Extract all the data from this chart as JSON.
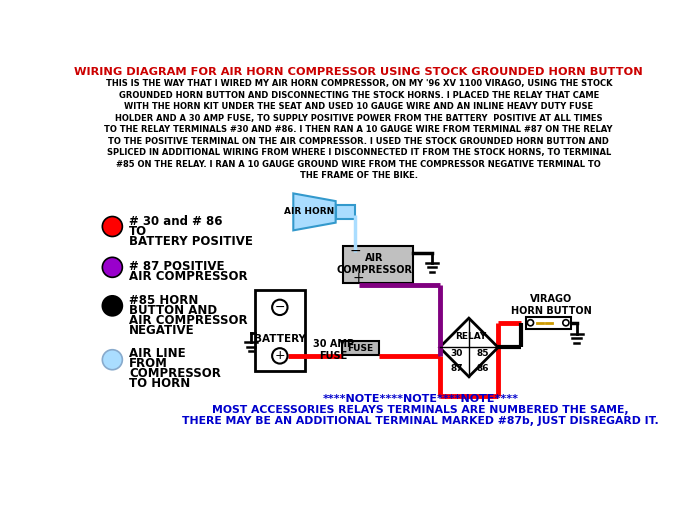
{
  "title": "WIRING DIAGRAM FOR AIR HORN COMPRESSOR USING STOCK GROUNDED HORN BUTTON",
  "title_color": "#cc0000",
  "bg_color": "#ffffff",
  "description": "THIS IS THE WAY THAT I WIRED MY AIR HORN COMPRESSOR, ON MY '96 XV 1100 VIRAGO, USING THE STOCK\nGROUNDED HORN BUTTON AND DISCONNECTING THE STOCK HORNS. I PLACED THE RELAY THAT CAME\nWITH THE HORN KIT UNDER THE SEAT AND USED 10 GAUGE WIRE AND AN INLINE HEAVY DUTY FUSE\nHOLDER AND A 30 AMP FUSE, TO SUPPLY POSITIVE POWER FROM THE BATTERY  POSITIVE AT ALL TIMES\nTO THE RELAY TERMINALS #30 AND #86. I THEN RAN A 10 GAUGE WIRE FROM TERMINAL #87 ON THE RELAY\nTO THE POSITIVE TERMINAL ON THE AIR COMPRESSOR. I USED THE STOCK GROUNDED HORN BUTTON AND\nSPLICED IN ADDITIONAL WIRING FROM WHERE I DISCONNECTED IT FROM THE STOCK HORNS, TO TERMINAL\n#85 ON THE RELAY. I RAN A 10 GAUGE GROUND WIRE FROM THE COMPRESSOR NEGATIVE TERMINAL TO\nTHE FRAME OF THE BIKE.",
  "note_line1": "****NOTE****NOTE****NOTE****",
  "note_line2": "MOST ACCESSORIES RELAYS TERMINALS ARE NUMBERED THE SAME,",
  "note_line3": "THERE MAY BE AN ADDITIONAL TERMINAL MARKED #87b, JUST DISREGARD IT.",
  "note_color": "#0000cc",
  "legend": [
    {
      "color": "#ff0000",
      "text": "# 30 and # 86\nTO\nBATTERY POSITIVE"
    },
    {
      "color": "#9900cc",
      "text": "# 87 POSITIVE\nAIR COMPRESSOR"
    },
    {
      "color": "#000000",
      "text": "#85 HORN\nBUTTON AND\nAIR COMPRESSOR\nNEGATIVE"
    },
    {
      "color": "#aaddff",
      "text": "AIR LINE\nFROM\nCOMPRESSOR\nTO HORN"
    }
  ]
}
